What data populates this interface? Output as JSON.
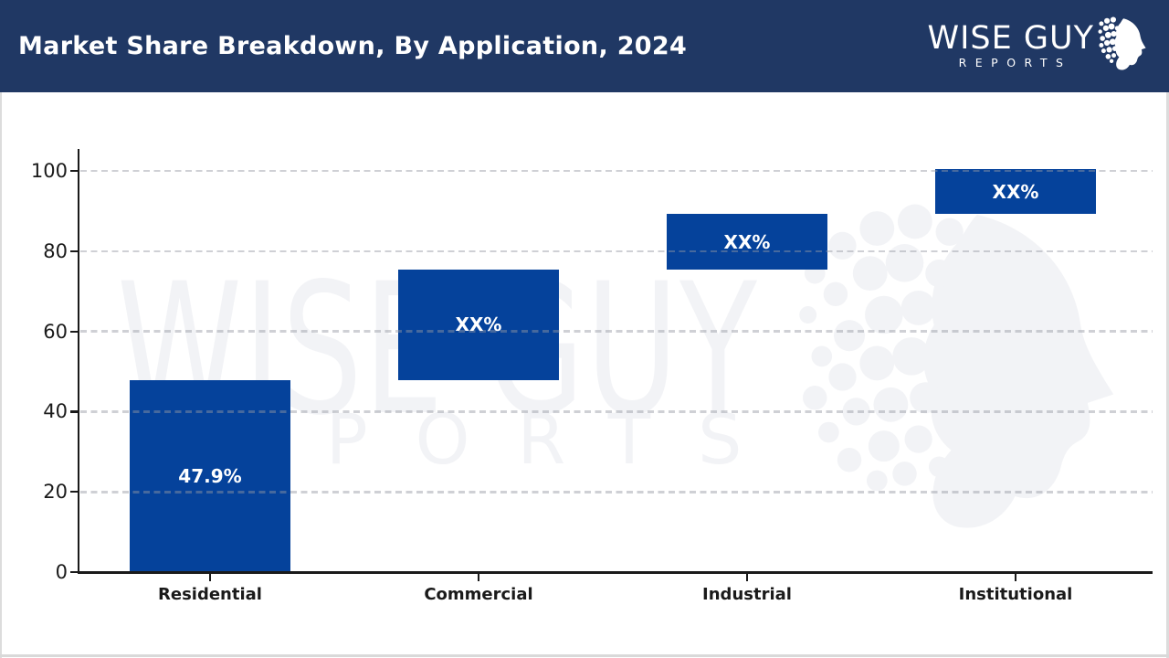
{
  "header": {
    "title": "Market Share Breakdown, By Application, 2024",
    "brand": {
      "name": "WISE GUY",
      "subname": "REPORTS"
    }
  },
  "watermark": {
    "line1": "WISE GUY",
    "line2": "REPORTS"
  },
  "chart_data": {
    "type": "bar",
    "subtype": "floating-segment-waterfall",
    "title": "Market Share Breakdown, By Application, 2024",
    "unit": "%",
    "categories": [
      "Residential",
      "Commercial",
      "Industrial",
      "Institutional"
    ],
    "series": [
      {
        "name": "Market Share",
        "segments": [
          {
            "category": "Residential",
            "from": 0,
            "to": 47.9,
            "value": 47.9,
            "label": "47.9%"
          },
          {
            "category": "Commercial",
            "from": 47.9,
            "to": 75.4,
            "value": 27.5,
            "label": "XX%"
          },
          {
            "category": "Industrial",
            "from": 75.4,
            "to": 89.2,
            "value": 13.8,
            "label": "XX%"
          },
          {
            "category": "Institutional",
            "from": 89.2,
            "to": 100.4,
            "value": 11.2,
            "label": "XX%"
          }
        ]
      }
    ],
    "xlabel": "",
    "ylabel": "",
    "yticks": [
      0,
      20,
      40,
      60,
      80,
      100
    ],
    "ylim": [
      0,
      105.5
    ],
    "grid": {
      "axis": "y",
      "style": "dashed",
      "drawn_above_bars": true
    },
    "legend": false,
    "bar_color": "#05429B",
    "value_label_color": "#FFFFFF"
  },
  "colors": {
    "header_bg": "#203864",
    "bar": "#05429B",
    "grid": "#C9CCD4",
    "axis": "#1A1A1A",
    "watermark": "#F2F3F6",
    "edge": "#D9D9D9",
    "title_text": "#FFFFFF"
  }
}
